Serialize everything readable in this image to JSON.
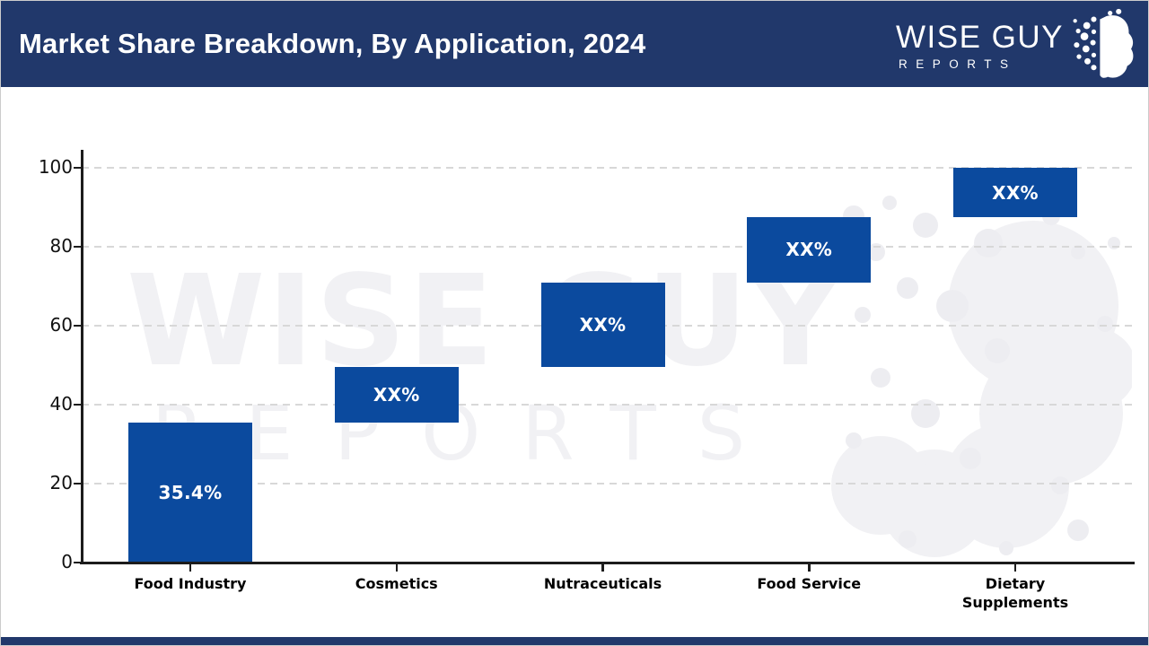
{
  "header": {
    "title": "Market Share Breakdown, By Application, 2024",
    "bg_color": "#21386b",
    "brand": {
      "line1": "WISE GUY",
      "line2": "REPORTS"
    }
  },
  "watermark": {
    "line1": "WISE GUY",
    "line2": "REPORTS"
  },
  "chart_data": {
    "type": "bar",
    "subtype": "floating-waterfall",
    "title": "Market Share Breakdown, By Application, 2024",
    "categories": [
      "Food Industry",
      "Cosmetics",
      "Nutraceuticals",
      "Food Service",
      "Dietary Supplements"
    ],
    "segments": [
      {
        "category": "Food Industry",
        "start": 0,
        "end": 35.4,
        "label": "35.4%"
      },
      {
        "category": "Cosmetics",
        "start": 35.4,
        "end": 49.5,
        "label": "XX%"
      },
      {
        "category": "Nutraceuticals",
        "start": 49.5,
        "end": 71.0,
        "label": "XX%"
      },
      {
        "category": "Food Service",
        "start": 71.0,
        "end": 87.5,
        "label": "XX%"
      },
      {
        "category": "Dietary Supplements",
        "start": 87.5,
        "end": 100.0,
        "label": "XX%"
      }
    ],
    "ylim": [
      0,
      100
    ],
    "yticks": [
      0,
      20,
      40,
      60,
      80,
      100
    ],
    "xlabel": "",
    "ylabel": "",
    "legend": "none",
    "grid": "horizontal-dashed",
    "bar_color": "#0b4a9e",
    "value_label_color": "#ffffff"
  }
}
